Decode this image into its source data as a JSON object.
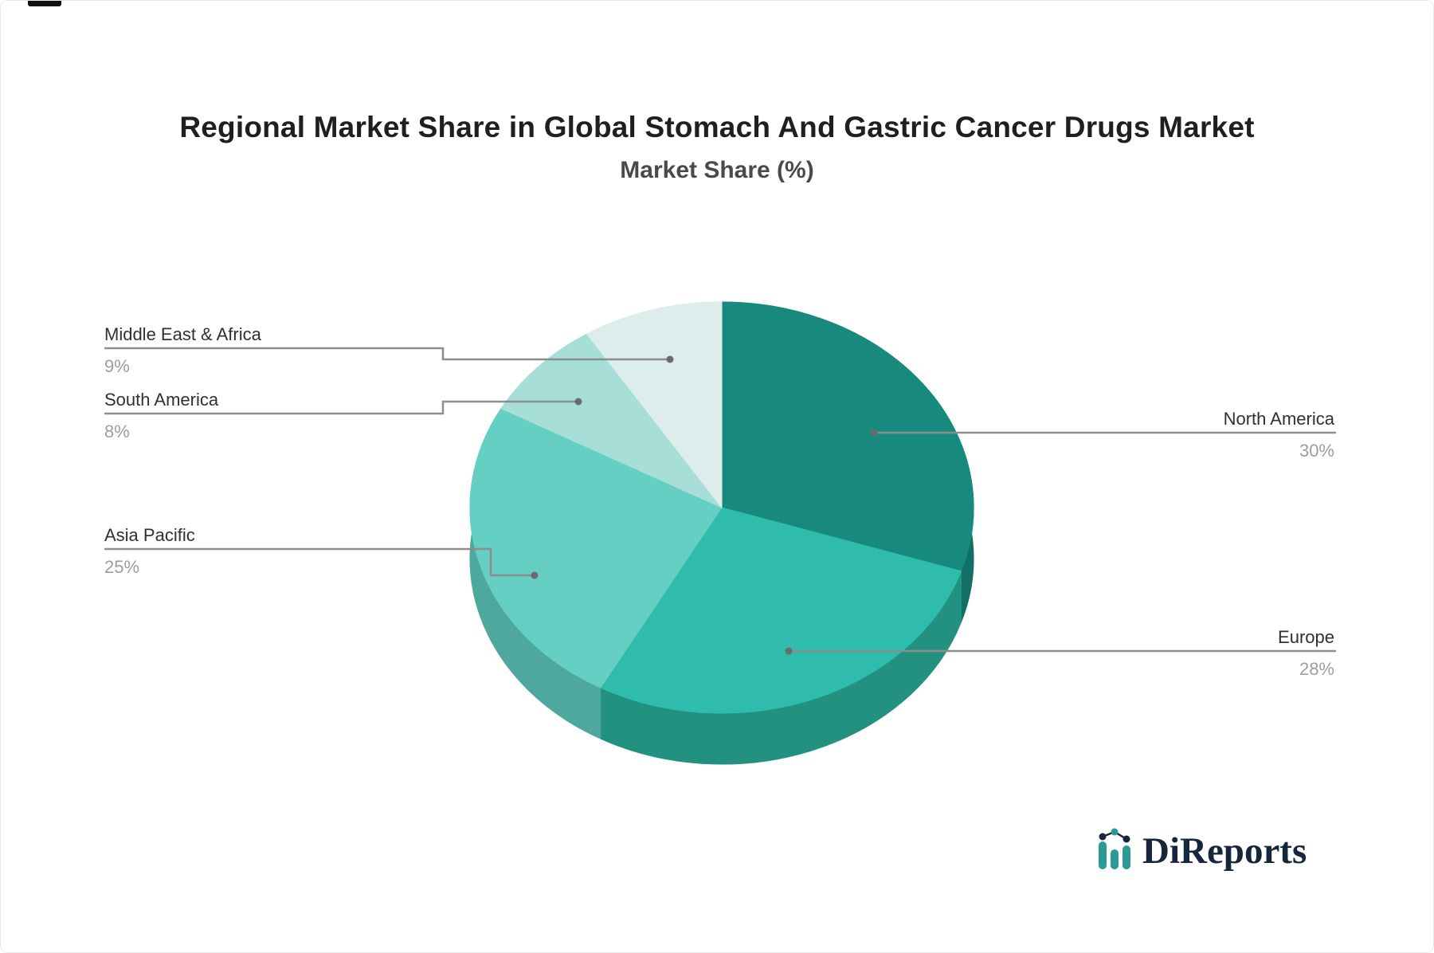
{
  "chart_data": {
    "type": "pie",
    "title": "Regional Market Share in Global Stomach And Gastric Cancer Drugs Market",
    "subtitle": "Market Share (%)",
    "unit": "%",
    "legend_position": "none",
    "label_style": "callout-with-percent",
    "effect": "3d",
    "series": [
      {
        "name": "North America",
        "value": 30,
        "pct_label": "30%",
        "color": "#178a7d",
        "side_color": "#136f65"
      },
      {
        "name": "Europe",
        "value": 28,
        "pct_label": "28%",
        "color": "#2fbcad",
        "side_color": "#239180"
      },
      {
        "name": "Asia Pacific",
        "value": 25,
        "pct_label": "25%",
        "color": "#65cfc3",
        "side_color": "#4fa89d"
      },
      {
        "name": "South America",
        "value": 8,
        "pct_label": "8%",
        "color": "#a7ded7",
        "side_color": "#88b5ae"
      },
      {
        "name": "Middle East & Africa",
        "value": 9,
        "pct_label": "9%",
        "color": "#dcedeb",
        "side_color": "#b2c1be"
      }
    ]
  },
  "styles": {
    "title_color": "#1f1f1f",
    "subtitle_color": "#4a4a4a",
    "name_color": "#303030",
    "value_color": "#9d9d9d",
    "connector_color": "#8d8d8d",
    "connector_dot_color": "#6b6b6b"
  },
  "footer": {
    "logo_text": "DiReports",
    "logo_text_color": "#16263c",
    "logo_accent_color": "#2a9a92"
  }
}
